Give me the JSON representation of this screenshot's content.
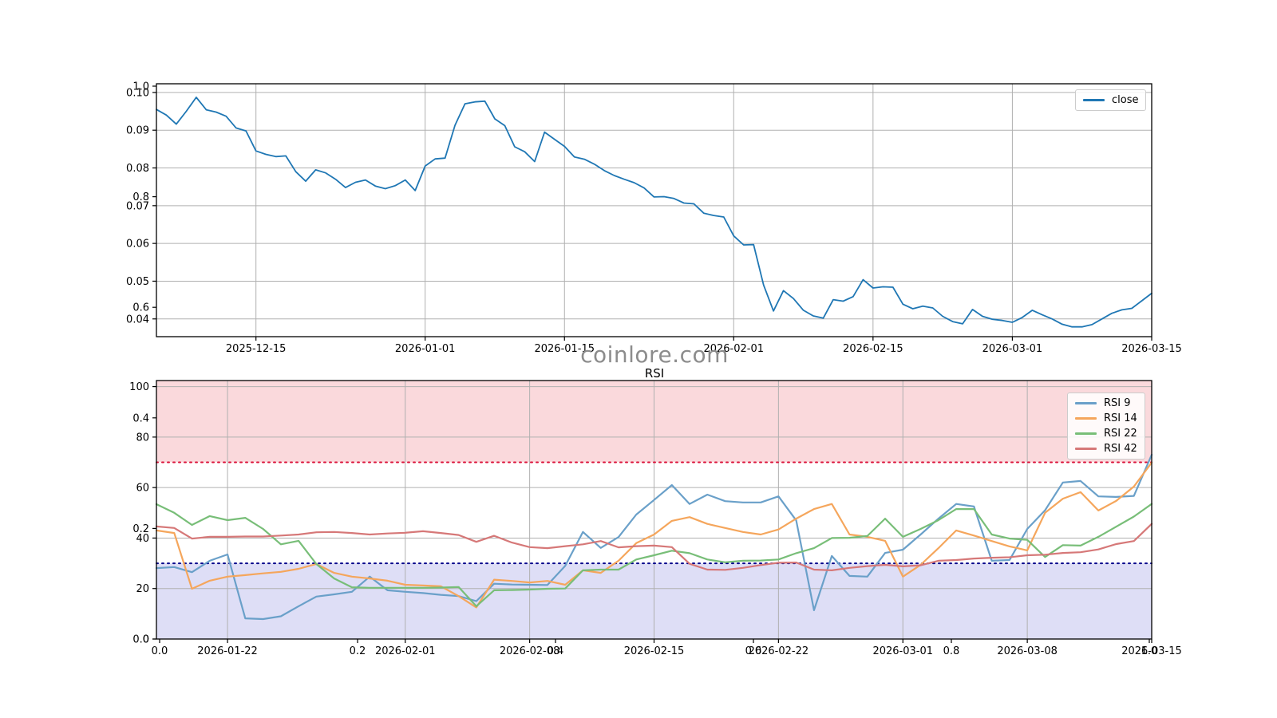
{
  "watermark": "coinlore.com",
  "colors": {
    "close_line": "#1f77b4",
    "rsi9": "#6aa0c9",
    "rsi14": "#f5a65c",
    "rsi22": "#78be78",
    "rsi42": "#d67878",
    "overbought_band": "#fad9dc",
    "oversold_band": "#dedef6",
    "overbought_line": "#dc143c",
    "oversold_line": "#00008b",
    "grid": "#b0b0b0",
    "frame": "#000000",
    "watermark_gray": "#8c8c8c"
  },
  "overlay_axis": {
    "x_tick_labels": [
      "0.0",
      "0.2",
      "0.4",
      "0.6",
      "0.8",
      "1.0"
    ],
    "y_tick_labels": [
      "0.0",
      "0.2",
      "0.4",
      "0.6",
      "0.8",
      "1.0"
    ]
  },
  "chart_data": [
    {
      "name": "price",
      "type": "line",
      "title": "",
      "x_start": "2025-12-05",
      "x_freq": "daily",
      "x_tick_labels": [
        "2025-12-15",
        "2026-01-01",
        "2026-01-15",
        "2026-02-01",
        "2026-02-15",
        "2026-03-01",
        "2026-03-15"
      ],
      "x_tick_indices": [
        10,
        27,
        41,
        58,
        72,
        86,
        100
      ],
      "y_tick_labels": [
        "0.04",
        "0.05",
        "0.06",
        "0.07",
        "0.08",
        "0.09",
        "0.10"
      ],
      "ylim": [
        0.0353,
        0.1023
      ],
      "grid": true,
      "legend_position": "upper right",
      "series": [
        {
          "name": "close",
          "color": "#1f77b4",
          "line_width": 1.8,
          "values": [
            0.0955,
            0.094,
            0.0916,
            0.095,
            0.0987,
            0.0954,
            0.0948,
            0.0937,
            0.0906,
            0.0898,
            0.0845,
            0.0836,
            0.083,
            0.0832,
            0.079,
            0.0765,
            0.0795,
            0.0787,
            0.077,
            0.0748,
            0.0762,
            0.0768,
            0.0752,
            0.0745,
            0.0753,
            0.0768,
            0.074,
            0.0805,
            0.0824,
            0.0826,
            0.0913,
            0.097,
            0.0975,
            0.0977,
            0.093,
            0.0912,
            0.0856,
            0.0843,
            0.0817,
            0.0895,
            0.0876,
            0.0857,
            0.0829,
            0.0823,
            0.081,
            0.0793,
            0.078,
            0.077,
            0.0761,
            0.0747,
            0.0723,
            0.0724,
            0.0719,
            0.0707,
            0.0705,
            0.068,
            0.0674,
            0.067,
            0.062,
            0.0596,
            0.0597,
            0.049,
            0.0421,
            0.0475,
            0.0454,
            0.0423,
            0.0408,
            0.0402,
            0.0451,
            0.0447,
            0.0459,
            0.0504,
            0.0482,
            0.0485,
            0.0484,
            0.0439,
            0.0427,
            0.0434,
            0.0429,
            0.0407,
            0.0393,
            0.0387,
            0.0425,
            0.0407,
            0.0399,
            0.0396,
            0.0391,
            0.0404,
            0.0423,
            0.0411,
            0.04,
            0.0386,
            0.0379,
            0.0379,
            0.0385,
            0.04,
            0.0415,
            0.0424,
            0.0428,
            0.0448,
            0.0468
          ]
        }
      ]
    },
    {
      "name": "rsi",
      "type": "line",
      "title": "RSI",
      "x_start": "2026-01-18",
      "x_freq": "daily",
      "x_tick_labels": [
        "2026-01-22",
        "2026-02-01",
        "2026-02-08",
        "2026-02-15",
        "2026-02-22",
        "2026-03-01",
        "2026-03-08",
        "2026-03-15"
      ],
      "x_tick_indices": [
        4,
        14,
        21,
        28,
        35,
        42,
        49,
        56
      ],
      "y_tick_labels": [
        "0",
        "20",
        "40",
        "60",
        "80",
        "100"
      ],
      "ylim": [
        0,
        102.4
      ],
      "grid": true,
      "legend_position": "upper right",
      "bands": [
        {
          "from": 70,
          "to": 102.4,
          "color": "#fad9dc",
          "meaning": "overbought"
        },
        {
          "from": 0,
          "to": 30,
          "color": "#dedef6",
          "meaning": "oversold"
        }
      ],
      "threshold_lines": [
        {
          "value": 70,
          "color": "#dc143c",
          "style": "dotted"
        },
        {
          "value": 30,
          "color": "#00008b",
          "style": "dotted"
        }
      ],
      "series": [
        {
          "name": "RSI 9",
          "color": "#6aa0c9",
          "line_width": 2.2,
          "values": [
            28.1,
            28.5,
            26.5,
            31,
            33.5,
            8.2,
            7.9,
            9,
            13,
            16.8,
            17.7,
            18.7,
            24.7,
            19.3,
            18.7,
            18.2,
            17.5,
            17,
            15,
            21.9,
            21.6,
            21.5,
            21.4,
            29,
            42.4,
            36.1,
            40.4,
            49.3,
            55.1,
            61,
            53.5,
            57.2,
            54.6,
            54.1,
            54.1,
            56.5,
            47,
            11.4,
            32.9,
            25,
            24.7,
            34.1,
            35.4,
            41.4,
            47.7,
            53.5,
            52.5,
            31,
            31.3,
            43.6,
            51,
            62,
            62.6,
            56.5,
            56.3,
            56.7,
            73
          ]
        },
        {
          "name": "RSI 14",
          "color": "#f5a65c",
          "line_width": 2.2,
          "values": [
            43,
            42,
            19.9,
            23.1,
            24.7,
            25.3,
            26,
            26.6,
            27.8,
            29.7,
            26.2,
            24.7,
            24,
            23.1,
            21.5,
            21.2,
            20.9,
            17,
            12.5,
            23.5,
            23,
            22.4,
            23,
            21.5,
            27.2,
            26.2,
            31,
            38,
            41.4,
            46.8,
            48.3,
            45.6,
            44,
            42.4,
            41.4,
            43.4,
            47.7,
            51.5,
            53.5,
            41.4,
            40.5,
            38.9,
            24.7,
            29.4,
            36,
            43,
            41,
            38.8,
            36.7,
            35.1,
            50,
            55.6,
            58.2,
            50.9,
            54.7,
            60.4,
            69.9
          ]
        },
        {
          "name": "RSI 22",
          "color": "#78be78",
          "line_width": 2.2,
          "values": [
            53.4,
            50,
            45.2,
            48.7,
            47.1,
            48,
            43.6,
            37.5,
            38.9,
            29.7,
            24,
            20.5,
            20.3,
            20.3,
            20.3,
            20.3,
            20.4,
            20.6,
            13,
            19.3,
            19.4,
            19.6,
            19.9,
            20,
            27.2,
            27.5,
            27.5,
            31.5,
            33.2,
            35,
            34,
            31.5,
            30.4,
            31,
            31.1,
            31.5,
            34,
            36,
            40,
            40.1,
            40.8,
            47.7,
            40.5,
            43.6,
            47.1,
            51.5,
            51.5,
            41.4,
            39.8,
            39.3,
            32.5,
            37.2,
            37,
            40.5,
            44.5,
            48.5,
            53.5
          ]
        },
        {
          "name": "RSI 42",
          "color": "#d67878",
          "line_width": 2.2,
          "values": [
            44.6,
            44,
            39.8,
            40.5,
            40.5,
            40.6,
            40.6,
            41,
            41.4,
            42.3,
            42.4,
            42,
            41.4,
            41.8,
            42.1,
            42.7,
            42,
            41.2,
            38.5,
            40.9,
            38.2,
            36.4,
            36,
            36.8,
            37.5,
            38.8,
            36.3,
            36.8,
            37,
            36.4,
            29.8,
            27.5,
            27.4,
            28.2,
            29.3,
            30.2,
            30.3,
            27.5,
            27.2,
            28.2,
            28.9,
            29.4,
            28.8,
            29.2,
            31,
            31.3,
            31.9,
            32.2,
            32.4,
            33.2,
            33.4,
            34.1,
            34.4,
            35.5,
            37.6,
            38.8,
            45.6
          ]
        }
      ]
    }
  ]
}
